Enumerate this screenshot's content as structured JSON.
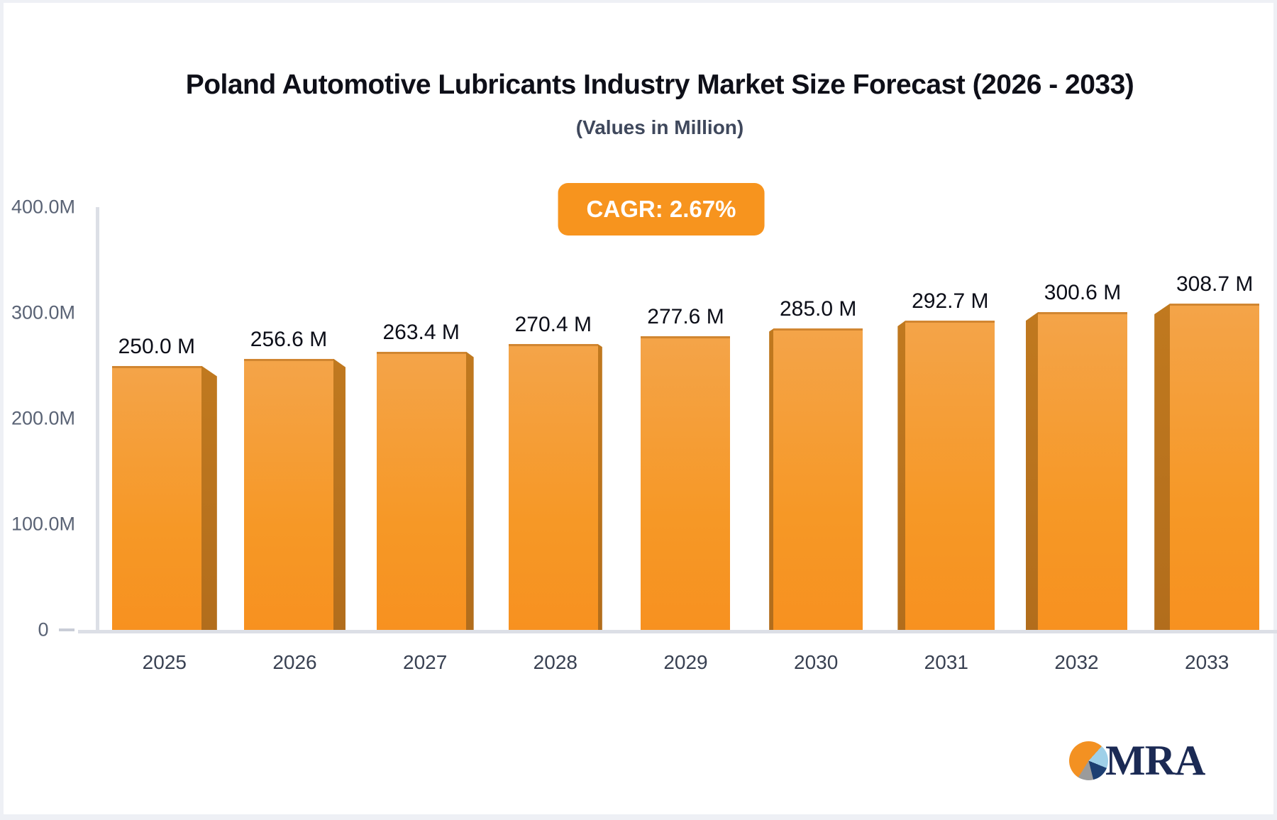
{
  "header": {
    "title": "Poland Automotive Lubricants Industry Market Size Forecast (2026 - 2033)",
    "subtitle": "(Values in Million)",
    "cagr_badge": "CAGR: 2.67%"
  },
  "chart_data": {
    "type": "bar",
    "title": "Poland Automotive Lubricants Industry Market Size Forecast (2026 - 2033)",
    "subtitle": "(Values in Million)",
    "cagr_percent": 2.67,
    "categories": [
      "2025",
      "2026",
      "2027",
      "2028",
      "2029",
      "2030",
      "2031",
      "2032",
      "2033"
    ],
    "values": [
      250.0,
      256.6,
      263.4,
      270.4,
      277.6,
      285.0,
      292.7,
      300.6,
      308.7
    ],
    "value_labels": [
      "250.0 M",
      "256.6 M",
      "263.4 M",
      "270.4 M",
      "277.6 M",
      "285.0 M",
      "292.7 M",
      "300.6 M",
      "308.7 M"
    ],
    "unit": "Million",
    "xlabel": "",
    "ylabel": "",
    "ylim": [
      0,
      400
    ],
    "y_ticks": [
      "400.0M",
      "300.0M",
      "200.0M",
      "100.0M",
      "0"
    ],
    "grid": false,
    "legend": false,
    "bar_style": "3d-extruded",
    "colors": {
      "bar_front_top": "#f4a449",
      "bar_front_bottom": "#f79120",
      "bar_side": "#b9731f",
      "badge": "#f7941e",
      "axis": "#dcdfe6",
      "y_tick_text": "#5a6375",
      "x_tick_text": "#394152",
      "value_text": "#0c0e18"
    }
  },
  "footer": {
    "logo_text": "MRA"
  }
}
